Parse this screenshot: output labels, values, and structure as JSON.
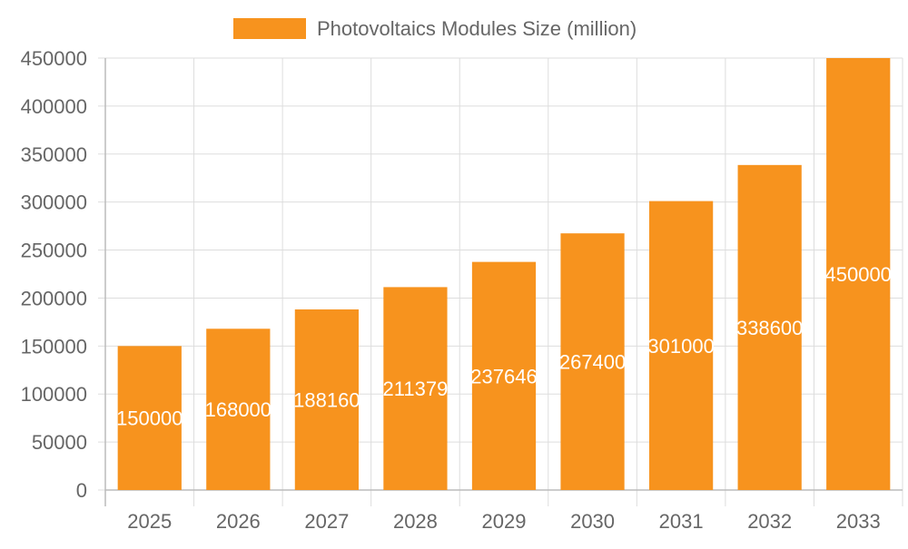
{
  "chart_data": {
    "type": "bar",
    "title": "",
    "xlabel": "",
    "ylabel": "",
    "legend": {
      "position": "top",
      "entries": [
        {
          "name": "Photovoltaics Modules Size (million)",
          "color": "#F7931E"
        }
      ]
    },
    "categories": [
      "2025",
      "2026",
      "2027",
      "2028",
      "2029",
      "2030",
      "2031",
      "2032",
      "2033"
    ],
    "series": [
      {
        "name": "Photovoltaics Modules Size (million)",
        "color": "#F7931E",
        "values": [
          150000,
          168000,
          188160,
          211379,
          237646,
          267400,
          301000,
          338600,
          450000
        ]
      }
    ],
    "data_labels": [
      "150000",
      "168000",
      "188160",
      "211379",
      "237646",
      "267400",
      "301000",
      "338600",
      "450000"
    ],
    "ylim": [
      0,
      450000
    ],
    "y_ticks": [
      0,
      50000,
      100000,
      150000,
      200000,
      250000,
      300000,
      350000,
      400000,
      450000
    ],
    "y_tick_labels": [
      "0",
      "50000",
      "100000",
      "150000",
      "200000",
      "250000",
      "300000",
      "350000",
      "400000",
      "450000"
    ],
    "grid": true
  }
}
